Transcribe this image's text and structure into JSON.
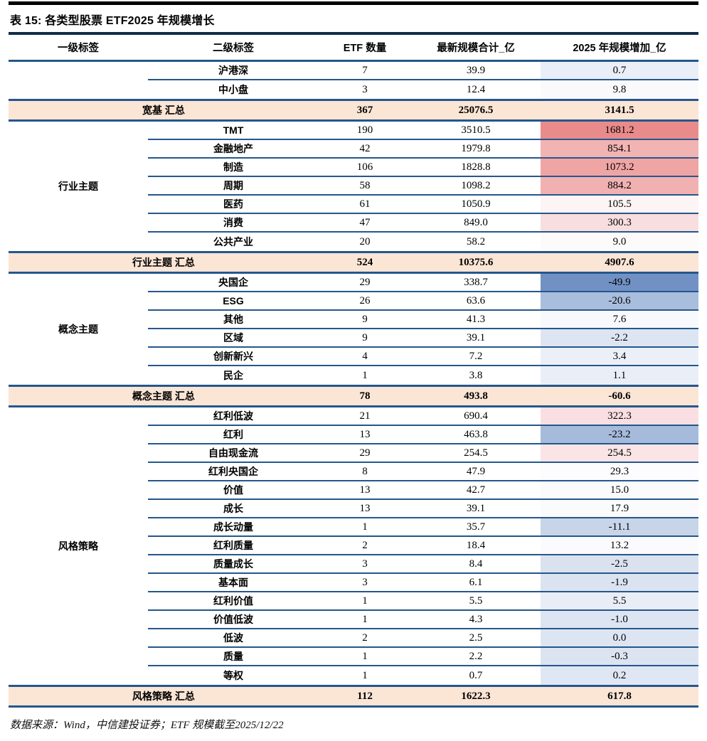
{
  "title": "表 15: 各类型股票 ETF2025 年规模增长",
  "columns": [
    "一级标签",
    "二级标签",
    "ETF 数量",
    "最新规模合计_亿",
    "2025 年规模增加_亿"
  ],
  "footer": {
    "source": "数据来源：Wind，中信建投证券；ETF 规模截至2025/12/22"
  },
  "colors": {
    "separator_line": "#24578C",
    "title_rule": "#122B47",
    "top_rule": "#000000",
    "summary_background": "#FBE5D5",
    "positive_strong": "#E98B8B",
    "negative_strong": "#7191C5"
  },
  "sections": [
    {
      "level1": "",
      "rows": [
        {
          "label": "沪港深",
          "count": "7",
          "total": "39.9",
          "delta": "0.7",
          "delta_bg": "#E9EEF7"
        },
        {
          "label": "中小盘",
          "count": "3",
          "total": "12.4",
          "delta": "9.8",
          "delta_bg": "#FAF9FC"
        }
      ],
      "summary": {
        "label": "宽基 汇总",
        "count": "367",
        "total": "25076.5",
        "delta": "3141.5"
      }
    },
    {
      "level1": "行业主题",
      "rows": [
        {
          "label": "TMT",
          "count": "190",
          "total": "3510.5",
          "delta": "1681.2",
          "delta_bg": "#E98B8B"
        },
        {
          "label": "金融地产",
          "count": "42",
          "total": "1979.8",
          "delta": "854.1",
          "delta_bg": "#F2B3B3"
        },
        {
          "label": "制造",
          "count": "106",
          "total": "1828.8",
          "delta": "1073.2",
          "delta_bg": "#F0A5A5"
        },
        {
          "label": "周期",
          "count": "58",
          "total": "1098.2",
          "delta": "884.2",
          "delta_bg": "#F2B1B1"
        },
        {
          "label": "医药",
          "count": "61",
          "total": "1050.9",
          "delta": "105.5",
          "delta_bg": "#FCF4F5"
        },
        {
          "label": "消费",
          "count": "47",
          "total": "849.0",
          "delta": "300.3",
          "delta_bg": "#F9DEDF"
        },
        {
          "label": "公共产业",
          "count": "20",
          "total": "58.2",
          "delta": "9.0",
          "delta_bg": "#FDFAFB"
        }
      ],
      "summary": {
        "label": "行业主题 汇总",
        "count": "524",
        "total": "10375.6",
        "delta": "4907.6"
      }
    },
    {
      "level1": "概念主题",
      "rows": [
        {
          "label": "央国企",
          "count": "29",
          "total": "338.7",
          "delta": "-49.9",
          "delta_bg": "#7191C5"
        },
        {
          "label": "ESG",
          "count": "26",
          "total": "63.6",
          "delta": "-20.6",
          "delta_bg": "#A9BDDC"
        },
        {
          "label": "其他",
          "count": "9",
          "total": "41.3",
          "delta": "7.6",
          "delta_bg": "#F7F9FC"
        },
        {
          "label": "区域",
          "count": "9",
          "total": "39.1",
          "delta": "-2.2",
          "delta_bg": "#DEE5F2"
        },
        {
          "label": "创新新兴",
          "count": "4",
          "total": "7.2",
          "delta": "3.4",
          "delta_bg": "#EBF0F8"
        },
        {
          "label": "民企",
          "count": "1",
          "total": "3.8",
          "delta": "1.1",
          "delta_bg": "#E9EEF7"
        }
      ],
      "summary": {
        "label": "概念主题 汇总",
        "count": "78",
        "total": "493.8",
        "delta": "-60.6"
      }
    },
    {
      "level1": "风格策略",
      "rows": [
        {
          "label": "红利低波",
          "count": "21",
          "total": "690.4",
          "delta": "322.3",
          "delta_bg": "#F9DFE1"
        },
        {
          "label": "红利",
          "count": "13",
          "total": "463.8",
          "delta": "-23.2",
          "delta_bg": "#A6BBDB"
        },
        {
          "label": "自由现金流",
          "count": "29",
          "total": "254.5",
          "delta": "254.5",
          "delta_bg": "#FAE4E5"
        },
        {
          "label": "红利央国企",
          "count": "8",
          "total": "47.9",
          "delta": "29.3",
          "delta_bg": "#FCFBFD"
        },
        {
          "label": "价值",
          "count": "13",
          "total": "42.7",
          "delta": "15.0",
          "delta_bg": "#FBFAFD"
        },
        {
          "label": "成长",
          "count": "13",
          "total": "39.1",
          "delta": "17.9",
          "delta_bg": "#FBFAFD"
        },
        {
          "label": "成长动量",
          "count": "1",
          "total": "35.7",
          "delta": "-11.1",
          "delta_bg": "#C8D5E9"
        },
        {
          "label": "红利质量",
          "count": "2",
          "total": "18.4",
          "delta": "13.2",
          "delta_bg": "#FBFAFD"
        },
        {
          "label": "质量成长",
          "count": "3",
          "total": "8.4",
          "delta": "-2.5",
          "delta_bg": "#DAE2F0"
        },
        {
          "label": "基本面",
          "count": "3",
          "total": "6.1",
          "delta": "-1.9",
          "delta_bg": "#DBE3F1"
        },
        {
          "label": "红利价值",
          "count": "1",
          "total": "5.5",
          "delta": "5.5",
          "delta_bg": "#E9EDF6"
        },
        {
          "label": "价值低波",
          "count": "1",
          "total": "4.3",
          "delta": "-1.0",
          "delta_bg": "#DDE4F2"
        },
        {
          "label": "低波",
          "count": "2",
          "total": "2.5",
          "delta": "0.0",
          "delta_bg": "#DEE5F2"
        },
        {
          "label": "质量",
          "count": "1",
          "total": "2.2",
          "delta": "-0.3",
          "delta_bg": "#DCE4F1"
        },
        {
          "label": "等权",
          "count": "1",
          "total": "0.7",
          "delta": "0.2",
          "delta_bg": "#E0E7F4"
        }
      ],
      "summary": {
        "label": "风格策略 汇总",
        "count": "112",
        "total": "1622.3",
        "delta": "617.8"
      }
    }
  ],
  "chart_data": {
    "type": "table",
    "title": "表 15: 各类型股票 ETF2025 年规模增长",
    "columns": [
      "一级标签",
      "二级标签",
      "ETF 数量",
      "最新规模合计_亿",
      "2025 年规模增加_亿"
    ],
    "rows": [
      [
        "",
        "沪港深",
        7,
        39.9,
        0.7
      ],
      [
        "",
        "中小盘",
        3,
        12.4,
        9.8
      ],
      [
        "宽基 汇总",
        "",
        367,
        25076.5,
        3141.5
      ],
      [
        "行业主题",
        "TMT",
        190,
        3510.5,
        1681.2
      ],
      [
        "行业主题",
        "金融地产",
        42,
        1979.8,
        854.1
      ],
      [
        "行业主题",
        "制造",
        106,
        1828.8,
        1073.2
      ],
      [
        "行业主题",
        "周期",
        58,
        1098.2,
        884.2
      ],
      [
        "行业主题",
        "医药",
        61,
        1050.9,
        105.5
      ],
      [
        "行业主题",
        "消费",
        47,
        849.0,
        300.3
      ],
      [
        "行业主题",
        "公共产业",
        20,
        58.2,
        9.0
      ],
      [
        "行业主题 汇总",
        "",
        524,
        10375.6,
        4907.6
      ],
      [
        "概念主题",
        "央国企",
        29,
        338.7,
        -49.9
      ],
      [
        "概念主题",
        "ESG",
        26,
        63.6,
        -20.6
      ],
      [
        "概念主题",
        "其他",
        9,
        41.3,
        7.6
      ],
      [
        "概念主题",
        "区域",
        9,
        39.1,
        -2.2
      ],
      [
        "概念主题",
        "创新新兴",
        4,
        7.2,
        3.4
      ],
      [
        "概念主题",
        "民企",
        1,
        3.8,
        1.1
      ],
      [
        "概念主题 汇总",
        "",
        78,
        493.8,
        -60.6
      ],
      [
        "风格策略",
        "红利低波",
        21,
        690.4,
        322.3
      ],
      [
        "风格策略",
        "红利",
        13,
        463.8,
        -23.2
      ],
      [
        "风格策略",
        "自由现金流",
        29,
        254.5,
        254.5
      ],
      [
        "风格策略",
        "红利央国企",
        8,
        47.9,
        29.3
      ],
      [
        "风格策略",
        "价值",
        13,
        42.7,
        15.0
      ],
      [
        "风格策略",
        "成长",
        13,
        39.1,
        17.9
      ],
      [
        "风格策略",
        "成长动量",
        1,
        35.7,
        -11.1
      ],
      [
        "风格策略",
        "红利质量",
        2,
        18.4,
        13.2
      ],
      [
        "风格策略",
        "质量成长",
        3,
        8.4,
        -2.5
      ],
      [
        "风格策略",
        "基本面",
        3,
        6.1,
        -1.9
      ],
      [
        "风格策略",
        "红利价值",
        1,
        5.5,
        5.5
      ],
      [
        "风格策略",
        "价值低波",
        1,
        4.3,
        -1.0
      ],
      [
        "风格策略",
        "低波",
        2,
        2.5,
        0.0
      ],
      [
        "风格策略",
        "质量",
        1,
        2.2,
        -0.3
      ],
      [
        "风格策略",
        "等权",
        1,
        0.7,
        0.2
      ],
      [
        "风格策略 汇总",
        "",
        112,
        1622.3,
        617.8
      ]
    ]
  }
}
